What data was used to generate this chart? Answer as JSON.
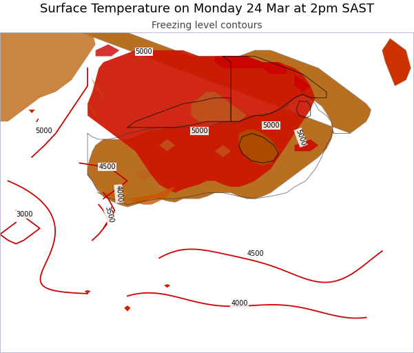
{
  "title": "Surface Temperature on Monday 24 Mar at 2pm SAST",
  "subtitle": "Freezing level contours",
  "title_fontsize": 13,
  "subtitle_fontsize": 10,
  "fig_bg": "#ffffff",
  "ocean_color": "#c8cce0",
  "land_base_color": "#b87020",
  "land_warm_color": "#cc4400",
  "land_hot_color": "#cc0000",
  "land_dark_color": "#aa0000",
  "contour_color": "#cc0000",
  "border_line_color": "#aab0cc",
  "contour_lw": 1.3,
  "lon_min": 12.0,
  "lon_max": 38.0,
  "lat_min": -47.0,
  "lat_max": -20.0
}
